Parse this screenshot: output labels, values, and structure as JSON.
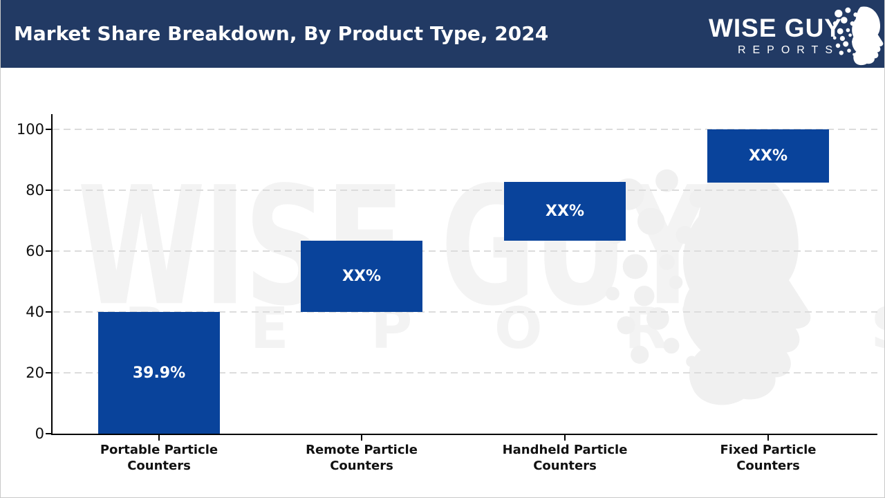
{
  "header": {
    "title": "Market Share Breakdown, By Product Type, 2024",
    "logo": {
      "name_line": "WISE GUY",
      "reports_line": "REPORTS"
    }
  },
  "watermark": {
    "big_text": "WISE GUY",
    "small_text": "R E P O R T S"
  },
  "chart_data": {
    "type": "bar",
    "variant": "waterfall",
    "title": "Market Share Breakdown, By Product Type, 2024",
    "categories": [
      "Portable Particle Counters",
      "Remote Particle Counters",
      "Handheld Particle Counters",
      "Fixed Particle Counters"
    ],
    "segments": [
      {
        "category": "Portable Particle Counters",
        "start": 0,
        "end": 39.9,
        "label": "39.9%"
      },
      {
        "category": "Remote Particle Counters",
        "start": 40,
        "end": 63.3,
        "label": "XX%"
      },
      {
        "category": "Handheld Particle Counters",
        "start": 63.3,
        "end": 82.7,
        "label": "XX%"
      },
      {
        "category": "Fixed Particle Counters",
        "start": 82.5,
        "end": 100,
        "label": "XX%"
      }
    ],
    "ylim": [
      0,
      100
    ],
    "yticks": [
      0,
      20,
      40,
      60,
      80,
      100
    ],
    "grid": "horizontal-dashed",
    "legend": "none",
    "bar_color": "#09439B",
    "bar_label_color": "#FFFFFF"
  },
  "colors": {
    "header_bg": "#223A64",
    "bar": "#09439B",
    "grid": "#DCDCDC",
    "axis": "#000000",
    "watermark": "#F2F2F2",
    "page_bg": "#FFFFFF",
    "border": "#C9C9C9"
  }
}
